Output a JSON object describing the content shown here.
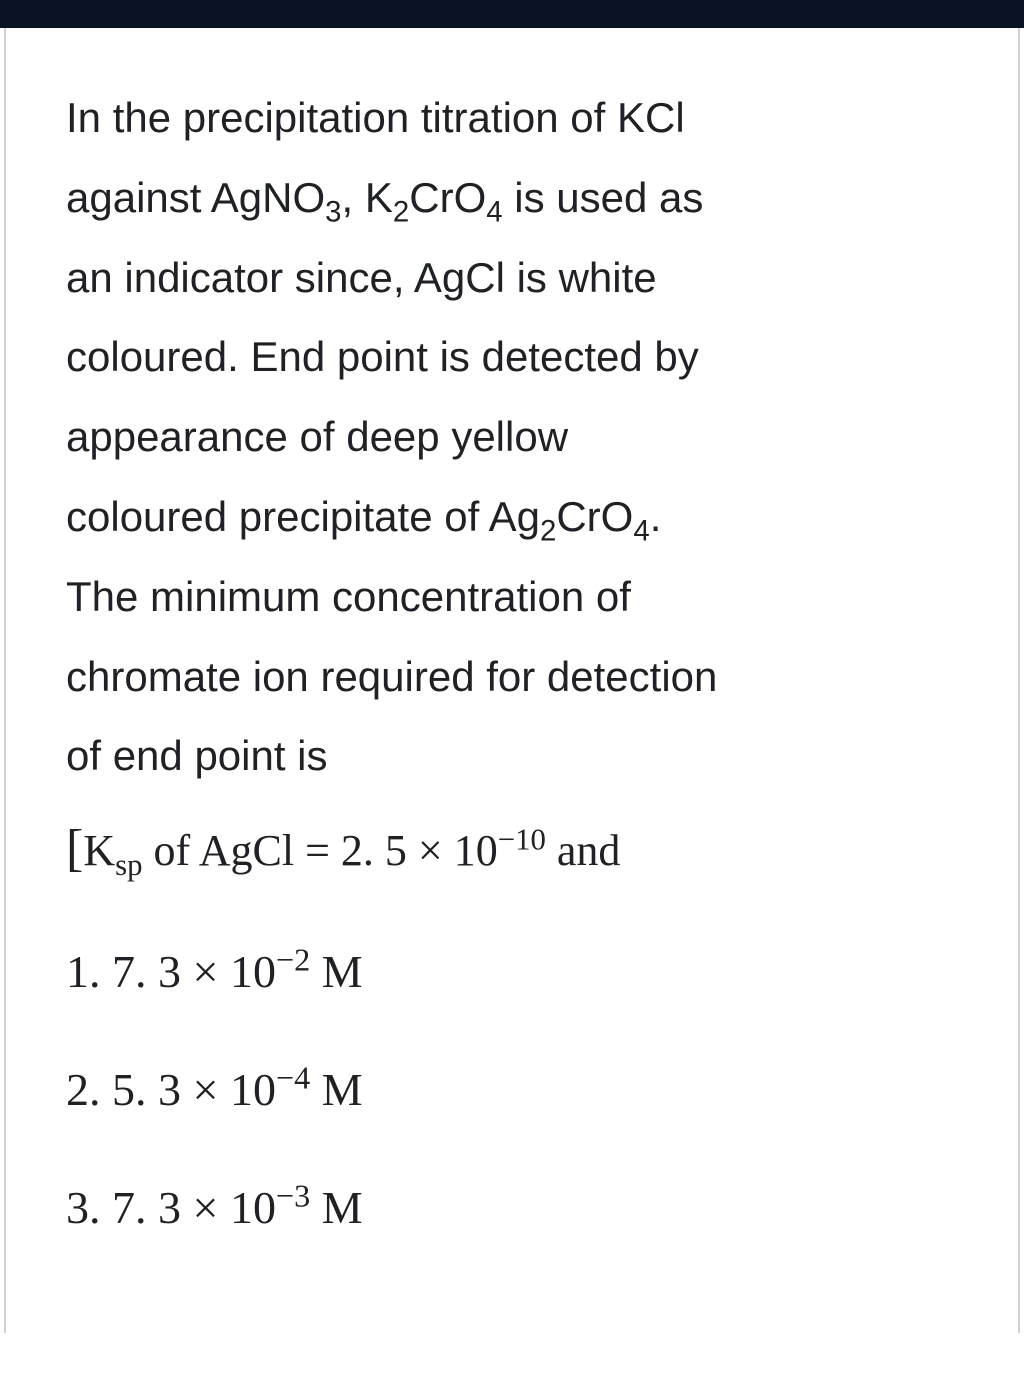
{
  "question": {
    "line1": "In the precipitation titration of KCl",
    "line2_pre": "against AgNO",
    "line2_sub1": "3",
    "line2_mid": ", K",
    "line2_sub2": "2",
    "line2_mid2": "CrO",
    "line2_sub3": "4",
    "line2_post": " is used as",
    "line3": "an indicator since, AgCl is white",
    "line4": "coloured. End point is detected by",
    "line5": "appearance of deep yellow",
    "line6_pre": "coloured precipitate of Ag",
    "line6_sub1": "2",
    "line6_mid": "CrO",
    "line6_sub2": "4",
    "line6_post": ".",
    "line7": "The minimum concentration of",
    "line8": "chromate ion required for detection",
    "line9": "of end point is"
  },
  "formula": {
    "bracket": "[",
    "k": "K",
    "sp": "sp",
    "mid": " of AgCl = 2. 5 × 10",
    "exp": "−10",
    "post": " and"
  },
  "options": {
    "o1": {
      "num": "1. ",
      "val": "7. 3 × 10",
      "exp": "−2",
      "unit": " M"
    },
    "o2": {
      "num": "2. ",
      "val": "5. 3 × 10",
      "exp": "−4",
      "unit": " M"
    },
    "o3": {
      "num": "3. ",
      "val": "7. 3 × 10",
      "exp": "−3",
      "unit": " M"
    }
  },
  "colors": {
    "topbar": "#0c1226",
    "text": "#202124",
    "background": "#ffffff",
    "border": "#d0d0d0"
  }
}
